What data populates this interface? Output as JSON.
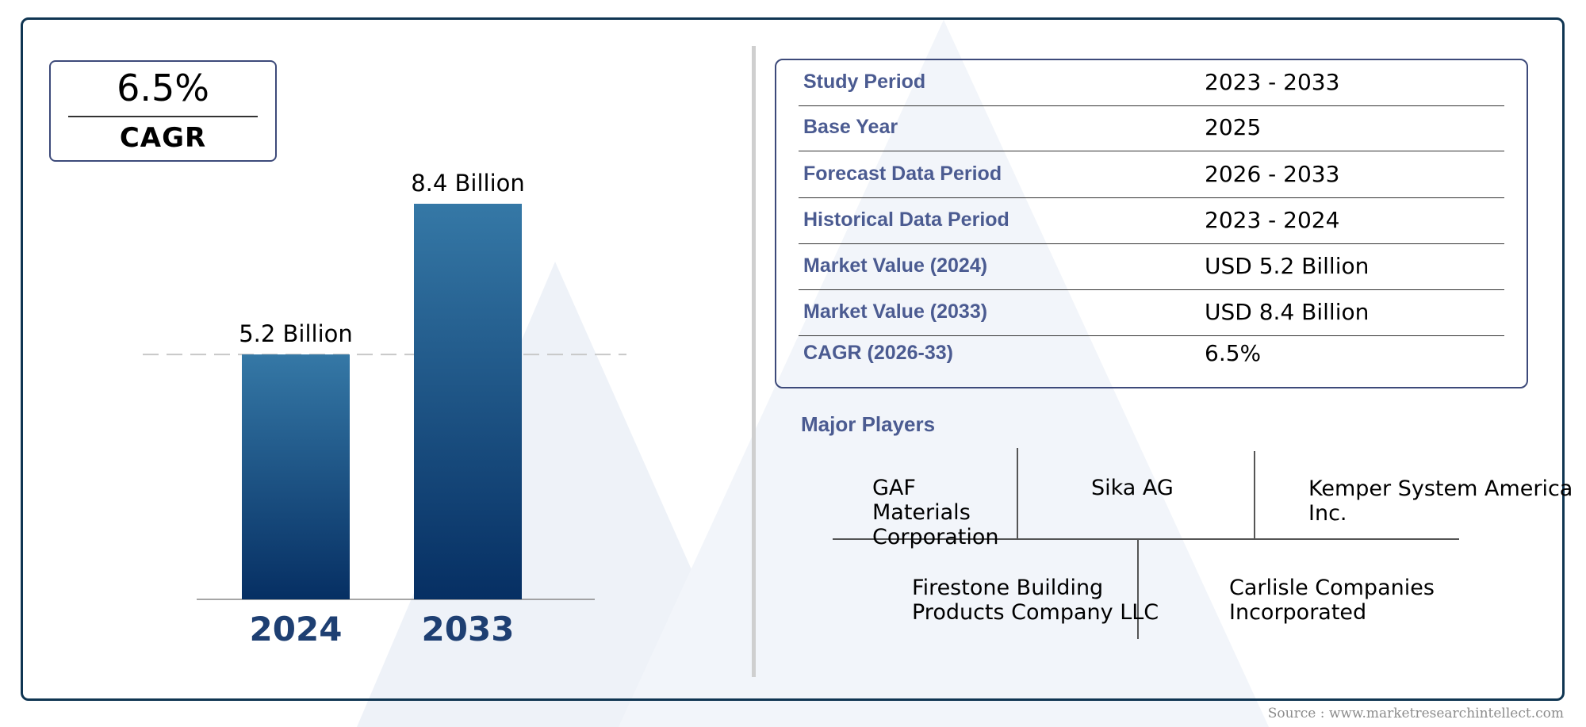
{
  "cagr_box": {
    "value": "6.5%",
    "label": "CAGR"
  },
  "chart_data": {
    "type": "bar",
    "categories": [
      "2024",
      "2033"
    ],
    "values": [
      5.2,
      8.4
    ],
    "value_labels": [
      "5.2 Billion",
      "8.4 Billion"
    ],
    "unit": "Billion",
    "reference_line": 5.2,
    "ylim": [
      0,
      8.4
    ],
    "grid": false,
    "legend": "none",
    "colors": {
      "bar_top": "#3578a6",
      "bar_bottom": "#062f63",
      "year_label": "#1e3f72"
    }
  },
  "info_table": [
    {
      "key": "Study Period",
      "value": "2023 - 2033"
    },
    {
      "key": "Base Year",
      "value": "2025"
    },
    {
      "key": "Forecast Data Period",
      "value": "2026 - 2033"
    },
    {
      "key": "Historical Data Period",
      "value": "2023 - 2024"
    },
    {
      "key": "Market Value (2024)",
      "value": "USD 5.2 Billion"
    },
    {
      "key": "Market Value (2033)",
      "value": "USD 8.4 Billion"
    },
    {
      "key": "CAGR (2026-33)",
      "value": "6.5%"
    }
  ],
  "major_players": {
    "title": "Major Players",
    "players": [
      {
        "line1": "GAF",
        "line2": "Materials",
        "line3": "Corporation"
      },
      {
        "line1": "Sika AG"
      },
      {
        "line1": "Kemper System America",
        "line2": "Inc."
      },
      {
        "line1": "Firestone Building",
        "line2": "Products Company LLC"
      },
      {
        "line1": "Carlisle Companies",
        "line2": "Incorporated"
      }
    ]
  },
  "source": "Source : www.marketresearchintellect.com",
  "colors": {
    "frame": "#0f3552",
    "accent_text": "#4b5b91",
    "box_border": "#3d4a7a"
  }
}
